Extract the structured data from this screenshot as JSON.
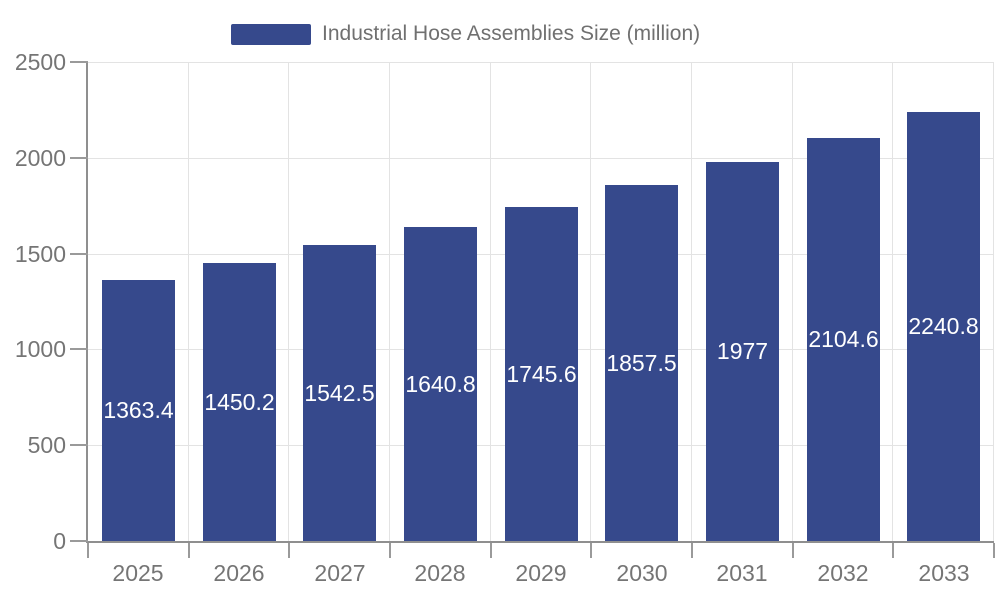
{
  "legend": {
    "label": "Industrial Hose Assemblies Size (million)",
    "swatch_color": "#36498c"
  },
  "colors": {
    "bar": "#36498c",
    "bar_value_text": "#ffffff",
    "axis_label_text": "#757575",
    "legend_text": "#707070",
    "axis_line": "#8f8f8f",
    "gridline": "#e3e3e3"
  },
  "chart_data": {
    "type": "bar",
    "title": "",
    "legend_position": "top-center",
    "grid": true,
    "categories": [
      "2025",
      "2026",
      "2027",
      "2028",
      "2029",
      "2030",
      "2031",
      "2032",
      "2033"
    ],
    "series": [
      {
        "name": "Industrial Hose Assemblies Size (million)",
        "values": [
          1363.4,
          1450.2,
          1542.5,
          1640.8,
          1745.6,
          1857.5,
          1977,
          2104.6,
          2240.8
        ]
      }
    ],
    "value_labels": [
      "1363.4",
      "1450.2",
      "1542.5",
      "1640.8",
      "1745.6",
      "1857.5",
      "1977",
      "2104.6",
      "2240.8"
    ],
    "xlabel": "",
    "ylabel": "",
    "ylim": [
      0,
      2500
    ],
    "y_ticks": [
      0,
      500,
      1000,
      1500,
      2000,
      2500
    ]
  }
}
